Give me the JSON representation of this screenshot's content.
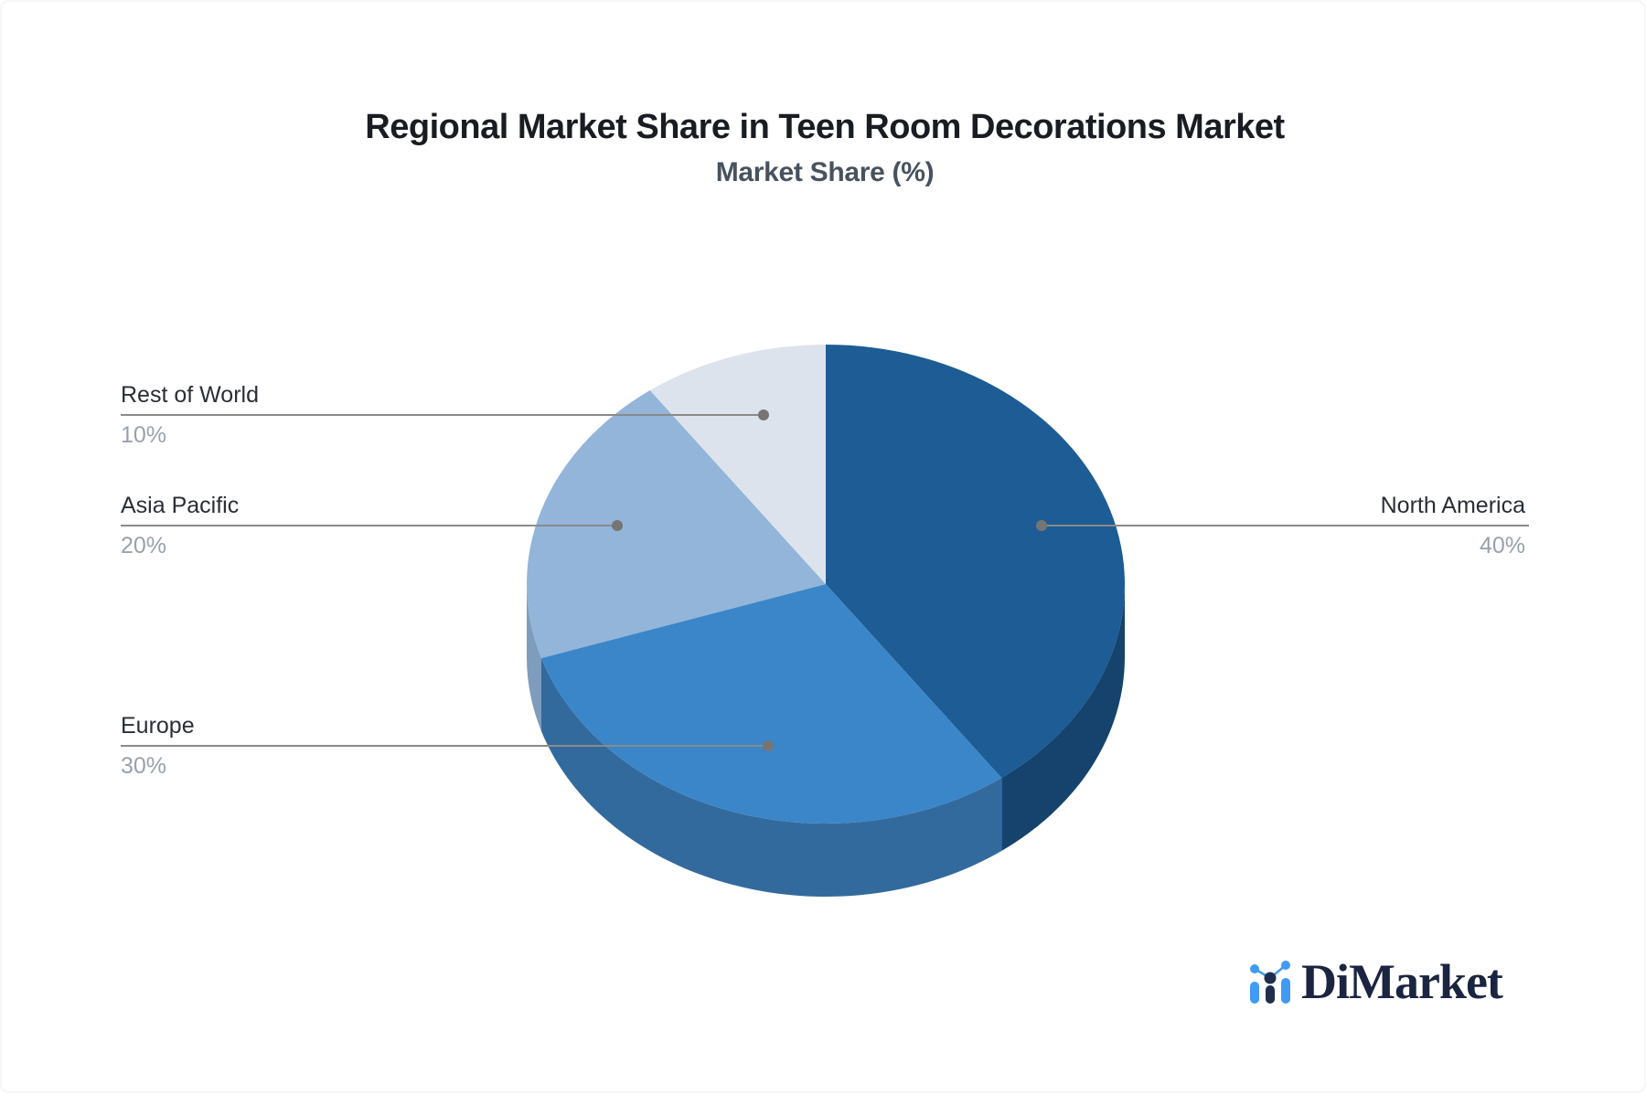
{
  "header": {
    "title": "Regional Market Share in Teen Room Decorations Market",
    "subtitle": "Market Share (%)"
  },
  "chart_data": {
    "type": "pie",
    "three_d": true,
    "start_angle_deg": 0,
    "direction": "clockwise",
    "title": "Regional Market Share in Teen Room Decorations Market",
    "subtitle": "Market Share (%)",
    "unit": "%",
    "legend_position": "callout-labels",
    "slices": [
      {
        "label": "North America",
        "value": 40,
        "display_value": "40%",
        "color": "#1d5c94",
        "rim_color": "#15436e"
      },
      {
        "label": "Europe",
        "value": 30,
        "display_value": "30%",
        "color": "#3b86c9",
        "rim_color": "#336a9e"
      },
      {
        "label": "Asia Pacific",
        "value": 20,
        "display_value": "20%",
        "color": "#93b5d9",
        "rim_color": "#7e9cbb"
      },
      {
        "label": "Rest of World",
        "value": 10,
        "display_value": "10%",
        "color": "#dde3ed",
        "rim_color": "#c3cdda"
      }
    ]
  },
  "callout_style": {
    "line_color": "#8a8a8a",
    "dot_color": "#757575",
    "name_color": "#2a2f35",
    "value_color": "#99a1ab"
  },
  "branding": {
    "name": "DiMarket",
    "icon": "bar-line-chart-icon",
    "text_color": "#1b2440",
    "icon_blue": "#3f9bf4",
    "icon_navy": "#202e4e"
  }
}
